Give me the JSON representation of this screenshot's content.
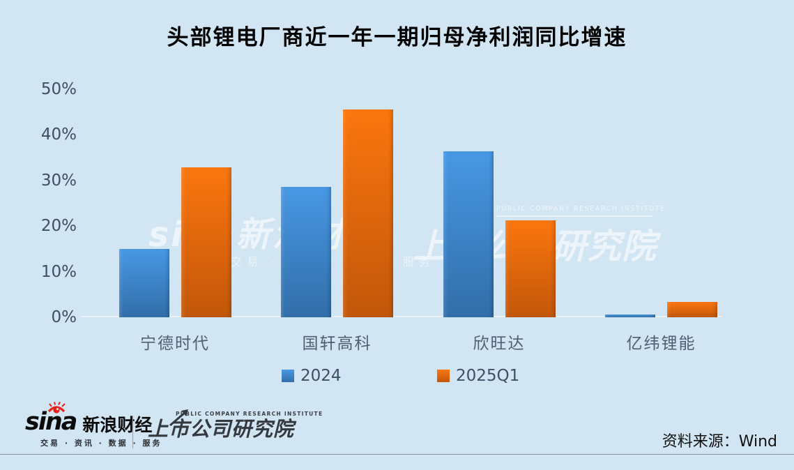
{
  "title": "头部锂电厂商近一年一期归母净利润同比增速",
  "chart_data": {
    "type": "bar",
    "categories": [
      "宁德时代",
      "国轩高科",
      "欣旺达",
      "亿纬锂能"
    ],
    "series": [
      {
        "name": "2024",
        "color_top": "#4898e4",
        "color_bottom": "#316ea9",
        "values": [
          15.0,
          28.6,
          36.4,
          0.6
        ]
      },
      {
        "name": "2025Q1",
        "color_top": "#fb760e",
        "color_bottom": "#c2570a",
        "values": [
          32.9,
          45.6,
          21.2,
          3.3
        ]
      }
    ],
    "xlabel": "",
    "ylabel": "",
    "ylim": [
      0,
      50
    ],
    "yticks": [
      "50%",
      "40%",
      "30%",
      "20%",
      "10%",
      "0%"
    ],
    "grid": false,
    "legend_position": "bottom"
  },
  "watermark": {
    "left_main": "sina新浪财经",
    "left_sub": "交易 · 资讯 · 数据 · 服务",
    "right_small": "PUBLIC COMPANY RESEARCH INSTITUTE",
    "right_main": "上市公司研究院"
  },
  "footer": {
    "sina_logo": "sina",
    "sina_brand": "新浪财经",
    "sina_tagline": "交易 · 资讯 · 数据 · 服务",
    "pcri_small": "PUBLIC COMPANY RESEARCH INSTITUTE",
    "pcri_main": "上市公司研究院",
    "source": "资料来源：Wind"
  },
  "colors": {
    "background": "#d2e5f3",
    "axis_text": "#3d4f66",
    "bar_blue": "#3f8ed8",
    "bar_orange": "#e56710",
    "baseline": "#e9f1f8",
    "footer_line": "#8a9097",
    "sina_red": "#e2231a"
  }
}
